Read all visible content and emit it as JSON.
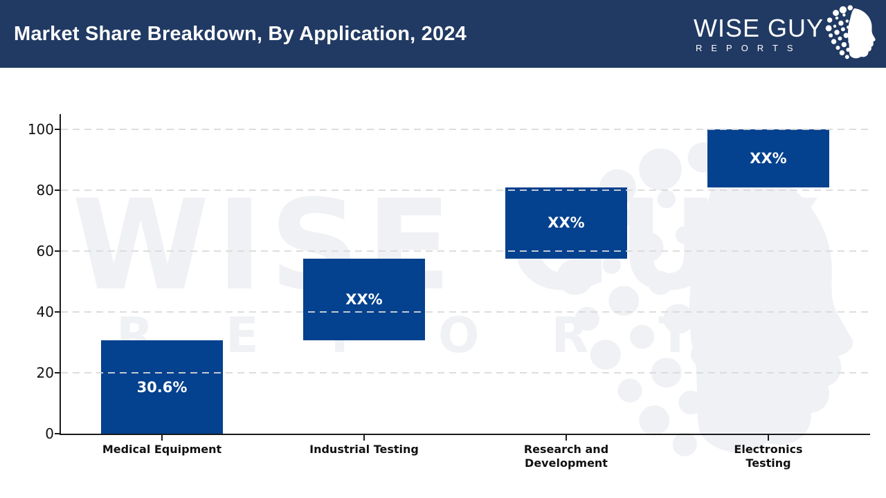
{
  "header": {
    "title": "Market Share Breakdown, By Application, 2024",
    "logo": {
      "brand": "WISE GUY",
      "sub": "REPORTS"
    }
  },
  "watermark": {
    "brand": "WISE GUY",
    "sub": "REPORTS"
  },
  "theme": {
    "header_bg": "#213a63",
    "bar_color": "#04418f",
    "bar_label_color": "#ffffff",
    "grid_color": "#d9d9d9",
    "axis_color": "#1a1a1a",
    "tick_label_color": "#111111",
    "watermark_color": "#eff1f4"
  },
  "chart_data": {
    "type": "bar",
    "subtype": "waterfall",
    "title": "Market Share Breakdown, By Application, 2024",
    "categories": [
      "Medical Equipment",
      "Industrial Testing",
      "Research and\nDevelopment",
      "Electronics\nTesting"
    ],
    "segments": [
      {
        "category": "Medical Equipment",
        "label": "30.6%",
        "start": 0,
        "end": 30.6
      },
      {
        "category": "Industrial Testing",
        "label": "XX%",
        "start": 30.6,
        "end": 57.5
      },
      {
        "category": "Research and Development",
        "label": "XX%",
        "start": 57.5,
        "end": 81.0
      },
      {
        "category": "Electronics Testing",
        "label": "XX%",
        "start": 81.0,
        "end": 100.0
      }
    ],
    "yticks": [
      0,
      20,
      40,
      60,
      80,
      100
    ],
    "ylim": [
      0,
      104
    ],
    "xlabel": "",
    "ylabel": "",
    "grid": "dashed-horizontal",
    "legend": "none"
  }
}
